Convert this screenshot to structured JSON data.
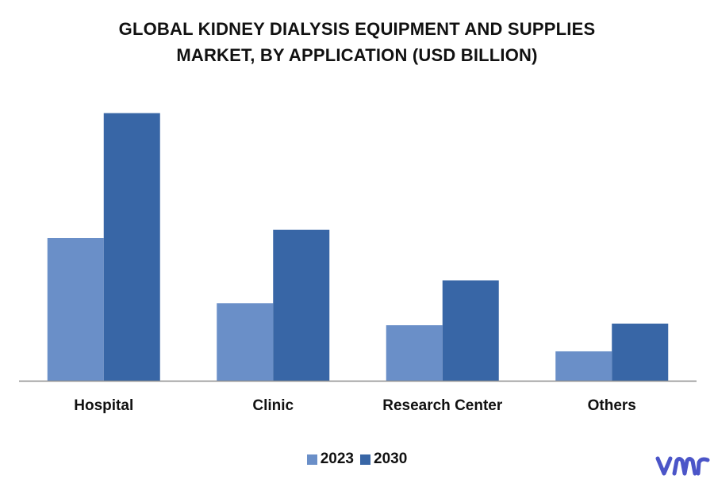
{
  "title_line1": "GLOBAL KIDNEY DIALYSIS EQUIPMENT AND SUPPLIES",
  "title_line2": "MARKET, BY APPLICATION (USD BILLION)",
  "colors": {
    "series_2023": "#6a8fc8",
    "series_2030": "#3866a6",
    "axis": "#8c8c8c",
    "logo": "#4b55c8"
  },
  "logo_icon": "vmr-logo",
  "chart_data": {
    "type": "bar",
    "title": "GLOBAL KIDNEY DIALYSIS EQUIPMENT AND SUPPLIES MARKET, BY APPLICATION (USD BILLION)",
    "categories": [
      "Hospital",
      "Clinic",
      "Research Center",
      "Others"
    ],
    "series": [
      {
        "name": "2023",
        "values": [
          17.5,
          9.5,
          6.8,
          3.6
        ]
      },
      {
        "name": "2030",
        "values": [
          32.8,
          18.5,
          12.3,
          7.0
        ]
      }
    ],
    "xlabel": "",
    "ylabel": "",
    "ylim": [
      0,
      35
    ],
    "grid": false,
    "legend": "bottom-center"
  }
}
